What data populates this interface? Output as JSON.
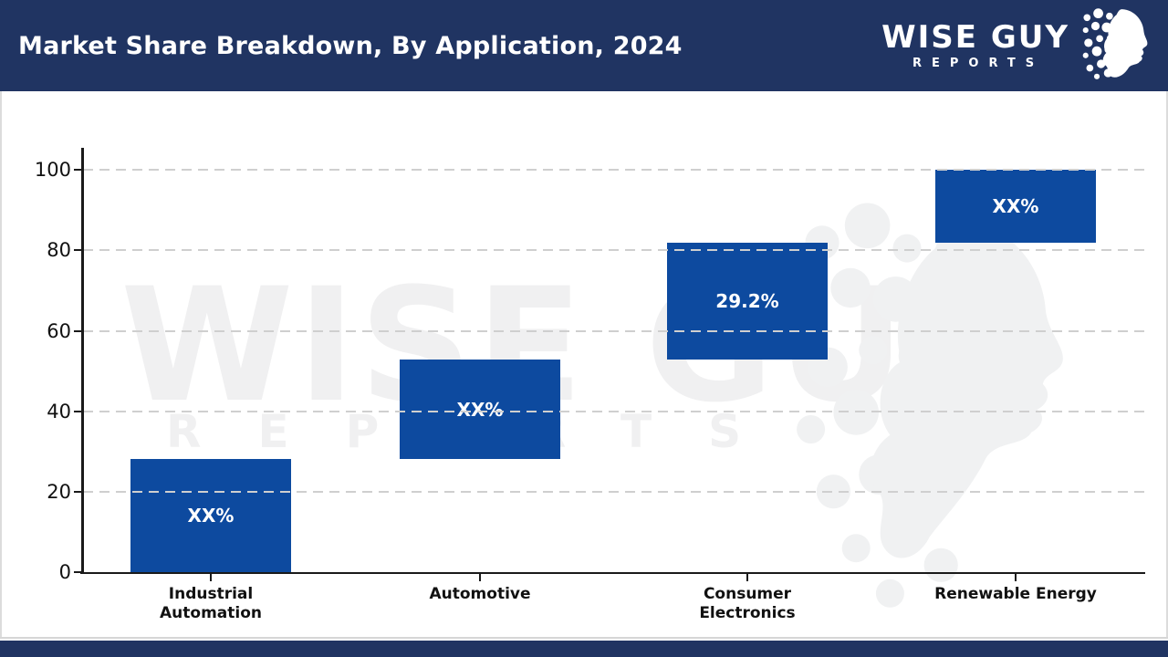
{
  "header": {
    "title": "Market Share Breakdown, By Application, 2024",
    "logo": {
      "line1": "WISE GUY",
      "line2": "REPORTS"
    }
  },
  "watermark": {
    "line1": "WISE GUY",
    "line2": "REPORTS"
  },
  "colors": {
    "header_navy": "#203462",
    "footer_navy": "#203462",
    "bar_blue": "#0d4a9f",
    "gridline_gray": "#cfcfcf",
    "watermark_gray": "#f0f0f1",
    "axis_black": "#1a1a1a",
    "label_white": "#ffffff"
  },
  "chart_data": {
    "type": "bar",
    "subtype": "waterfall-floating-bars",
    "title": "Market Share Breakdown, By Application, 2024",
    "categories": [
      "Industrial\nAutomation",
      "Automotive",
      "Consumer\nElectronics",
      "Renewable Energy"
    ],
    "segments": [
      {
        "category": "Industrial Automation",
        "start": 0,
        "end": 28.2,
        "value": 28.2,
        "label": "XX%"
      },
      {
        "category": "Automotive",
        "start": 28.2,
        "end": 52.8,
        "value": 24.6,
        "label": "XX%"
      },
      {
        "category": "Consumer Electronics",
        "start": 52.8,
        "end": 82.0,
        "value": 29.2,
        "label": "29.2%"
      },
      {
        "category": "Renewable Energy",
        "start": 82.0,
        "end": 100,
        "value": 18.0,
        "label": "XX%"
      }
    ],
    "yticks": [
      0,
      20,
      40,
      60,
      80,
      100
    ],
    "ylim": [
      0,
      105
    ],
    "xlabel": "",
    "ylabel": "",
    "legend": "none",
    "grid": "horizontal dashed, drawn above bars",
    "bar_value_label_position": "centered inside bar"
  }
}
